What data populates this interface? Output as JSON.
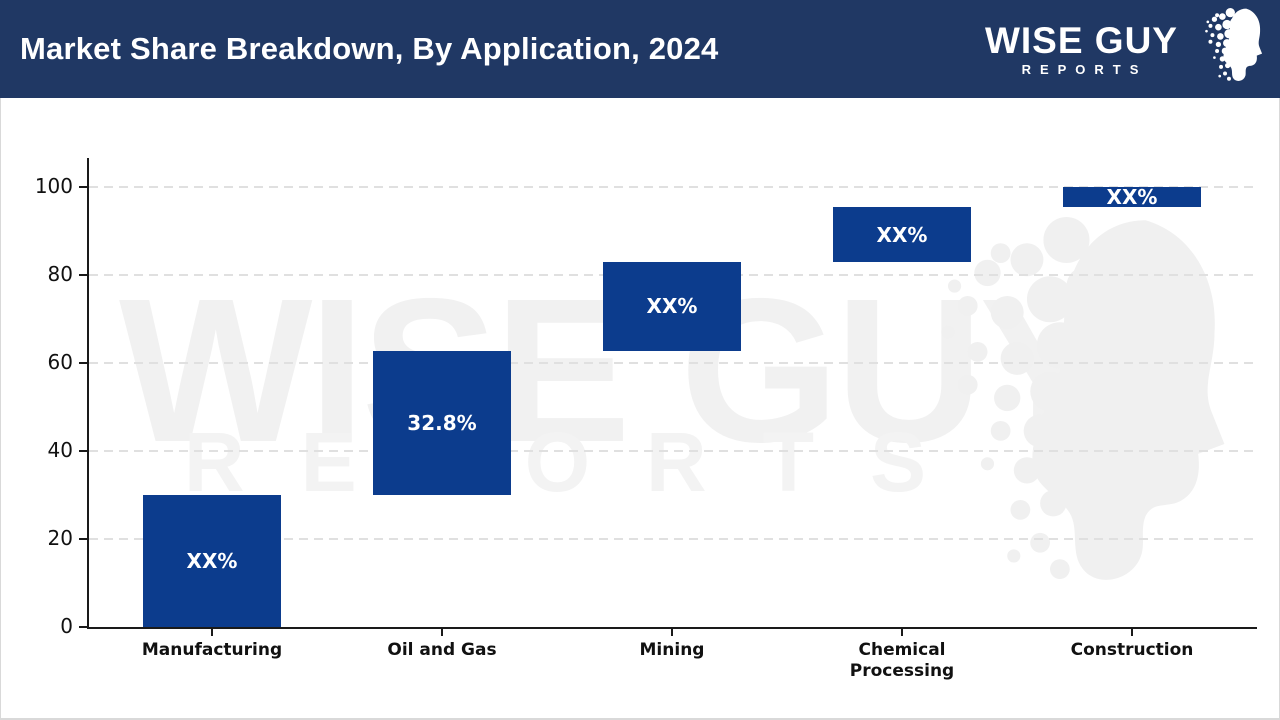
{
  "header": {
    "title": "Market Share Breakdown, By Application, 2024"
  },
  "logo": {
    "line1": "WISE GUY",
    "line2": "REPORTS"
  },
  "watermark": {
    "line1": "WISE GUY",
    "line2": "REPORTS",
    "head_icon": "dotted-head-profile"
  },
  "colors": {
    "header_bg": "#203864",
    "bar": "#0c3c8d",
    "bar_label": "#ffffff",
    "axis": "#1a1a1a",
    "grid": "#e0e0e0",
    "watermark": "#f1f1f1"
  },
  "chart_data": {
    "type": "bar",
    "subtype": "waterfall",
    "title": "Market Share Breakdown, By Application, 2024",
    "xlabel": "",
    "ylabel": "",
    "ylim": [
      0,
      105
    ],
    "yticks": [
      0,
      20,
      40,
      60,
      80,
      100
    ],
    "grid": "horizontal-dashed",
    "legend": "none",
    "categories": [
      "Manufacturing",
      "Oil and Gas",
      "Mining",
      "Chemical Processing",
      "Construction"
    ],
    "category_label_lines": [
      [
        "Manufacturing"
      ],
      [
        "Oil and Gas"
      ],
      [
        "Mining"
      ],
      [
        "Chemical",
        "Processing"
      ],
      [
        "Construction"
      ]
    ],
    "segments": [
      {
        "category": "Manufacturing",
        "start": 0,
        "end": 30,
        "label": "XX%"
      },
      {
        "category": "Oil and Gas",
        "start": 30,
        "end": 62.8,
        "label": "32.8%"
      },
      {
        "category": "Mining",
        "start": 62.8,
        "end": 83,
        "label": "XX%"
      },
      {
        "category": "Chemical Processing",
        "start": 83,
        "end": 95.4,
        "label": "XX%"
      },
      {
        "category": "Construction",
        "start": 95.4,
        "end": 100,
        "label": "XX%"
      }
    ]
  }
}
